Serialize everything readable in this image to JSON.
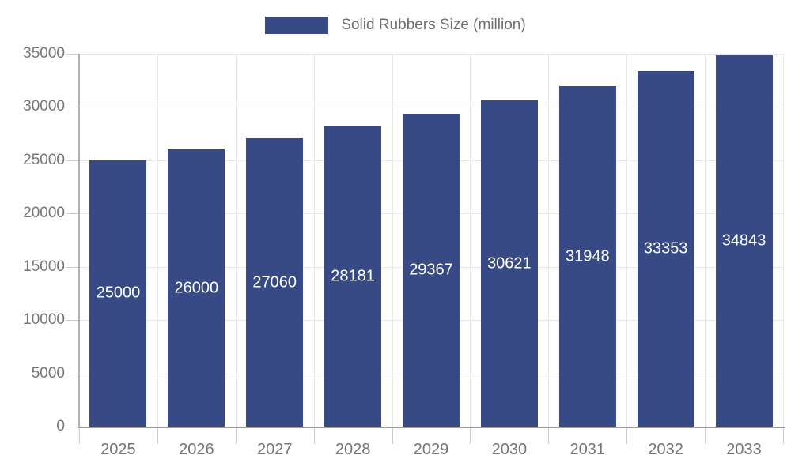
{
  "legend": {
    "label": "Solid Rubbers Size (million)"
  },
  "chart_data": {
    "type": "bar",
    "title": "Solid Rubbers Size (million)",
    "categories": [
      "2025",
      "2026",
      "2027",
      "2028",
      "2029",
      "2030",
      "2031",
      "2032",
      "2033"
    ],
    "values": [
      25000,
      26000,
      27060,
      28181,
      29367,
      30621,
      31948,
      33353,
      34843
    ],
    "xlabel": "",
    "ylabel": "",
    "ylim": [
      0,
      35000
    ],
    "yticks": [
      0,
      5000,
      10000,
      15000,
      20000,
      25000,
      30000,
      35000
    ],
    "grid": true,
    "legend_position": "top",
    "bar_color": "#374A86",
    "bar_label_color": "#ffffff",
    "axis_text_color": "#757575",
    "grid_color": "#e8e8e8"
  }
}
